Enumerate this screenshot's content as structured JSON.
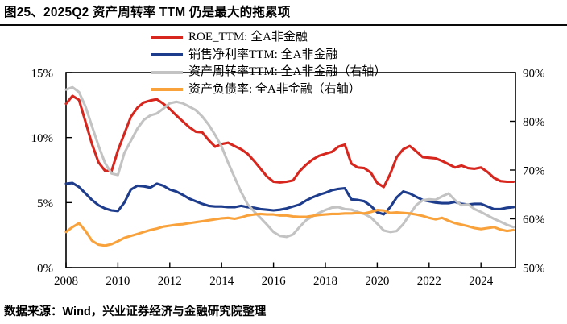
{
  "header": {
    "title": "图25、2025Q2 资产周转率 TTM 仍是最大的拖累项"
  },
  "footer": {
    "source": "数据来源：Wind，兴业证券经济与金融研究院整理"
  },
  "chart_data": {
    "type": "line",
    "title": "",
    "grid": false,
    "legend_position": "top-center-inside",
    "x_start": 2008,
    "x_step": 0.25,
    "x_end": 2025.25,
    "x_tick_labels": [
      "2008",
      "2010",
      "2012",
      "2014",
      "2016",
      "2018",
      "2020",
      "2022",
      "2024"
    ],
    "x_tick_values": [
      2008,
      2010,
      2012,
      2014,
      2016,
      2018,
      2020,
      2022,
      2024
    ],
    "left_axis": {
      "min": 0,
      "max": 15,
      "tick_values": [
        0,
        5,
        10,
        15
      ],
      "tick_labels": [
        "0%",
        "5%",
        "10%",
        "15%"
      ]
    },
    "right_axis": {
      "min": 50,
      "max": 90,
      "tick_values": [
        50,
        60,
        70,
        80,
        90
      ],
      "tick_labels": [
        "50%",
        "60%",
        "70%",
        "80%",
        "90%"
      ]
    },
    "series": [
      {
        "key": "roe-ttm",
        "name": "ROE_TTM: 全A非金融",
        "axis": "left",
        "color": "#d7261d",
        "values": [
          12.6,
          13.2,
          12.9,
          11.2,
          9.5,
          8.1,
          7.45,
          7.4,
          9.0,
          10.3,
          11.6,
          12.3,
          12.7,
          12.85,
          12.95,
          12.6,
          12.2,
          11.7,
          11.25,
          10.8,
          10.45,
          10.4,
          9.8,
          9.3,
          9.5,
          9.6,
          9.35,
          9.1,
          8.75,
          8.2,
          7.6,
          7.0,
          6.6,
          6.55,
          6.6,
          6.7,
          7.4,
          7.9,
          8.3,
          8.6,
          8.75,
          8.9,
          9.3,
          9.45,
          8.0,
          7.7,
          7.65,
          7.3,
          6.5,
          6.2,
          7.2,
          8.5,
          9.1,
          9.35,
          8.95,
          8.5,
          8.45,
          8.4,
          8.2,
          7.95,
          7.7,
          7.85,
          7.65,
          7.6,
          7.7,
          7.35,
          6.9,
          6.65,
          6.6,
          6.6
        ]
      },
      {
        "key": "net-margin-ttm",
        "name": "销售净利率TTM: 全A非金融",
        "axis": "left",
        "color": "#1e3c8c",
        "values": [
          6.45,
          6.5,
          6.2,
          5.7,
          5.2,
          4.8,
          4.55,
          4.4,
          4.35,
          5.0,
          6.0,
          6.3,
          6.25,
          6.15,
          6.45,
          6.3,
          6.0,
          5.85,
          5.6,
          5.3,
          5.1,
          4.9,
          4.75,
          4.7,
          4.7,
          4.65,
          4.65,
          4.75,
          4.65,
          4.6,
          4.5,
          4.45,
          4.4,
          4.45,
          4.55,
          4.7,
          4.85,
          5.15,
          5.4,
          5.6,
          5.75,
          5.95,
          6.05,
          6.1,
          5.25,
          5.2,
          5.1,
          4.75,
          4.25,
          4.1,
          4.65,
          5.4,
          5.85,
          5.7,
          5.45,
          5.2,
          5.1,
          5.0,
          4.95,
          4.95,
          5.05,
          4.9,
          4.85,
          4.9,
          4.9,
          4.7,
          4.5,
          4.5,
          4.6,
          4.65
        ]
      },
      {
        "key": "asset-turnover-ttm",
        "name": "资产周转率TTM: 全A非金融（右轴）",
        "axis": "right",
        "color": "#c3c3c3",
        "values": [
          86.5,
          87.0,
          86.0,
          83.0,
          79.0,
          75.0,
          71.5,
          69.3,
          69.0,
          73.5,
          76.0,
          78.5,
          80.3,
          81.2,
          81.6,
          82.6,
          83.7,
          84.0,
          83.7,
          83.0,
          82.3,
          81.0,
          79.3,
          77.2,
          74.8,
          71.5,
          68.5,
          65.5,
          63.0,
          61.5,
          60.2,
          58.8,
          57.3,
          56.5,
          56.3,
          56.8,
          58.3,
          59.7,
          60.5,
          61.2,
          61.8,
          62.3,
          62.4,
          62.0,
          61.9,
          61.4,
          61.0,
          60.3,
          59.0,
          57.6,
          57.3,
          57.5,
          58.9,
          60.9,
          62.8,
          63.8,
          64.0,
          63.9,
          64.6,
          65.2,
          63.8,
          62.8,
          63.0,
          62.0,
          61.4,
          60.7,
          60.0,
          59.4,
          58.8,
          58.3
        ]
      },
      {
        "key": "debt-ratio",
        "name": "资产负债率: 全A非金融（右轴）",
        "axis": "right",
        "color": "#f9a23c",
        "values": [
          57.3,
          58.3,
          59.1,
          57.5,
          55.5,
          54.7,
          54.5,
          54.8,
          55.4,
          56.1,
          56.5,
          56.9,
          57.3,
          57.7,
          58.0,
          58.4,
          58.6,
          58.8,
          58.9,
          59.1,
          59.3,
          59.5,
          59.7,
          59.9,
          60.1,
          60.2,
          60.0,
          60.3,
          60.7,
          60.9,
          61.0,
          60.9,
          60.9,
          60.7,
          60.7,
          60.5,
          60.4,
          60.4,
          60.6,
          60.8,
          60.9,
          61.0,
          61.0,
          61.1,
          61.1,
          61.2,
          61.1,
          61.4,
          61.8,
          61.7,
          61.2,
          61.3,
          61.2,
          61.1,
          60.9,
          60.6,
          60.2,
          59.9,
          60.2,
          59.6,
          59.1,
          58.8,
          58.5,
          58.1,
          57.9,
          58.1,
          58.3,
          57.8,
          57.5,
          57.7
        ]
      }
    ]
  }
}
